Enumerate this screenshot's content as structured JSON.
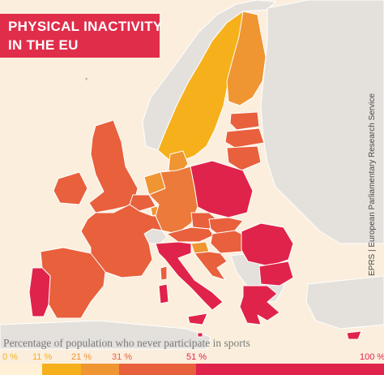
{
  "title": {
    "line1": "PHYSICAL INACTIVITY",
    "line2": "IN THE EU"
  },
  "source": "EPRS | European Parliamentary Research Service",
  "legend": {
    "caption": "Percentage of population who never participate in sports",
    "ticks": [
      "0 %",
      "11 %",
      "21 %",
      "31 %",
      "51 %",
      "100 %"
    ],
    "scale": [
      {
        "from": 0,
        "to": 11,
        "color": "#fff0d6"
      },
      {
        "from": 11,
        "to": 21,
        "color": "#f6b01b"
      },
      {
        "from": 21,
        "to": 31,
        "color": "#ef9532"
      },
      {
        "from": 31,
        "to": 51,
        "color": "#e8603c"
      },
      {
        "from": 51,
        "to": 100,
        "color": "#e0234a"
      }
    ],
    "tick_colors": [
      "#f6b01b",
      "#f6b01b",
      "#ef9532",
      "#e8603c",
      "#e0234a",
      "#e0234a"
    ]
  },
  "map_data": {
    "type": "choropleth",
    "countries": [
      {
        "name": "Sweden",
        "band": "11-21 %",
        "color": "#f6b01b"
      },
      {
        "name": "Finland",
        "band": "21-31 %",
        "color": "#ef9532"
      },
      {
        "name": "Denmark",
        "band": "21-31 %",
        "color": "#ef9532"
      },
      {
        "name": "Netherlands",
        "band": "21-31 %",
        "color": "#ef9532"
      },
      {
        "name": "Luxembourg",
        "band": "21-31 %",
        "color": "#ef9532"
      },
      {
        "name": "Slovenia",
        "band": "21-31 %",
        "color": "#ef9532"
      },
      {
        "name": "Estonia",
        "band": "31-51 %",
        "color": "#e8603c"
      },
      {
        "name": "Germany",
        "band": "31-51 %",
        "color": "#ec7a3a"
      },
      {
        "name": "Ireland",
        "band": "31-51 %",
        "color": "#e8603c"
      },
      {
        "name": "United Kingdom",
        "band": "31-51 %",
        "color": "#e8603c"
      },
      {
        "name": "Belgium",
        "band": "31-51 %",
        "color": "#e8603c"
      },
      {
        "name": "France",
        "band": "31-51 %",
        "color": "#e8603c"
      },
      {
        "name": "Spain",
        "band": "31-51 %",
        "color": "#e8603c"
      },
      {
        "name": "Austria",
        "band": "31-51 %",
        "color": "#e8603c"
      },
      {
        "name": "Czech Republic",
        "band": "31-51 %",
        "color": "#e8603c"
      },
      {
        "name": "Latvia",
        "band": "31-51 %",
        "color": "#e8603c"
      },
      {
        "name": "Lithuania",
        "band": "31-51 %",
        "color": "#e8603c"
      },
      {
        "name": "Slovakia",
        "band": "31-51 %",
        "color": "#e8603c"
      },
      {
        "name": "Hungary",
        "band": "31-51 %",
        "color": "#e8603c"
      },
      {
        "name": "Croatia",
        "band": "31-51 %",
        "color": "#e8603c"
      },
      {
        "name": "Poland",
        "band": "51-100 %",
        "color": "#e0234a"
      },
      {
        "name": "Portugal",
        "band": "51-100 %",
        "color": "#e0234a"
      },
      {
        "name": "Italy",
        "band": "51-100 %",
        "color": "#e0234a"
      },
      {
        "name": "Romania",
        "band": "51-100 %",
        "color": "#e0234a"
      },
      {
        "name": "Bulgaria",
        "band": "51-100 %",
        "color": "#e0234a"
      },
      {
        "name": "Greece",
        "band": "51-100 %",
        "color": "#e0234a"
      },
      {
        "name": "Malta",
        "band": "51-100 %",
        "color": "#e0234a"
      },
      {
        "name": "Cyprus",
        "band": "51-100 %",
        "color": "#e0234a"
      }
    ]
  }
}
